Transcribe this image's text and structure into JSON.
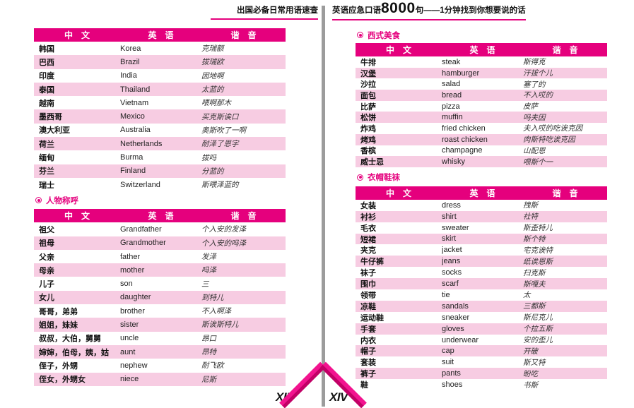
{
  "colors": {
    "magenta": "#e5007d",
    "row_pink": "#f7cce2",
    "divider_gray": "#9c9c9c"
  },
  "header_left": {
    "title": "出国必备日常用语速查"
  },
  "header_right": {
    "prefix": "英语应急口语",
    "big_number": "8000",
    "suffix": "句——1分钟找到你想要说的话"
  },
  "columns": {
    "chinese": "中　文",
    "english": "英　语",
    "phonetic": "谐　音"
  },
  "page_left": {
    "page_number": "XIII",
    "countries_table": {
      "rows": [
        [
          "韩国",
          "Korea",
          "克瑞额"
        ],
        [
          "巴西",
          "Brazil",
          "拔瑞欧"
        ],
        [
          "印度",
          "India",
          "因地啊"
        ],
        [
          "泰国",
          "Thailand",
          "太蓝的"
        ],
        [
          "越南",
          "Vietnam",
          "喂啊那木"
        ],
        [
          "墨西哥",
          "Mexico",
          "买克斯诶口"
        ],
        [
          "澳大利亚",
          "Australia",
          "奥斯吹了一啊"
        ],
        [
          "荷兰",
          "Netherlands",
          "耐泽了恩字"
        ],
        [
          "缅甸",
          "Burma",
          "拔吗"
        ],
        [
          "芬兰",
          "Finland",
          "分蓝的"
        ],
        [
          "瑞士",
          "Switzerland",
          "斯喂泽蓝的"
        ]
      ]
    },
    "people_section": {
      "title": "人物称呼",
      "rows": [
        [
          "祖父",
          "Grandfather",
          "个入安的发泽"
        ],
        [
          "祖母",
          "Grandmother",
          "个入安的吗泽"
        ],
        [
          "父亲",
          "father",
          "发泽"
        ],
        [
          "母亲",
          "mother",
          "吗泽"
        ],
        [
          "儿子",
          "son",
          "三"
        ],
        [
          "女儿",
          "daughter",
          "到特儿"
        ],
        [
          "哥哥，弟弟",
          "brother",
          "不入啊泽"
        ],
        [
          "姐姐，妹妹",
          "sister",
          "斯诶斯特儿"
        ],
        [
          "叔叔，大伯，舅舅",
          "uncle",
          "昂口"
        ],
        [
          "婶婶，伯母，姨，姑",
          "aunt",
          "昂特"
        ],
        [
          "侄子，外甥",
          "nephew",
          "耐飞欧"
        ],
        [
          "侄女，外甥女",
          "niece",
          "尼斯"
        ]
      ]
    }
  },
  "page_right": {
    "page_number": "XIV",
    "food_section": {
      "title": "西式美食",
      "rows": [
        [
          "牛排",
          "steak",
          "斯得克"
        ],
        [
          "汉堡",
          "hamburger",
          "汗拔个儿"
        ],
        [
          "沙拉",
          "salad",
          "塞了的"
        ],
        [
          "面包",
          "bread",
          "不入哎的"
        ],
        [
          "比萨",
          "pizza",
          "皮萨"
        ],
        [
          "松饼",
          "muffin",
          "吗夫因"
        ],
        [
          "炸鸡",
          "fried chicken",
          "夫入哎的吃诶克因"
        ],
        [
          "烤鸡",
          "roast chicken",
          "肉斯特吃诶克因"
        ],
        [
          "香槟",
          "champagne",
          "山配恩"
        ],
        [
          "威士忌",
          "whisky",
          "喂斯个一"
        ]
      ]
    },
    "clothes_section": {
      "title": "衣帽鞋袜",
      "rows": [
        [
          "女装",
          "dress",
          "拽斯"
        ],
        [
          "衬衫",
          "shirt",
          "社特"
        ],
        [
          "毛衣",
          "sweater",
          "斯歪特儿"
        ],
        [
          "短裙",
          "skirt",
          "斯个特"
        ],
        [
          "夹克",
          "jacket",
          "宅克诶特"
        ],
        [
          "牛仔裤",
          "jeans",
          "纸诶恩斯"
        ],
        [
          "袜子",
          "socks",
          "扫克斯"
        ],
        [
          "围巾",
          "scarf",
          "斯嘎夫"
        ],
        [
          "领带",
          "tie",
          "太"
        ],
        [
          "凉鞋",
          "sandals",
          "三都斯"
        ],
        [
          "运动鞋",
          "sneaker",
          "斯尼克儿"
        ],
        [
          "手套",
          "gloves",
          "个拉五斯"
        ],
        [
          "内衣",
          "underwear",
          "安的歪儿"
        ],
        [
          "帽子",
          "cap",
          "开破"
        ],
        [
          "套装",
          "suit",
          "斯又特"
        ],
        [
          "裤子",
          "pants",
          "盼吃"
        ],
        [
          "鞋",
          "shoes",
          "书斯"
        ]
      ]
    }
  }
}
